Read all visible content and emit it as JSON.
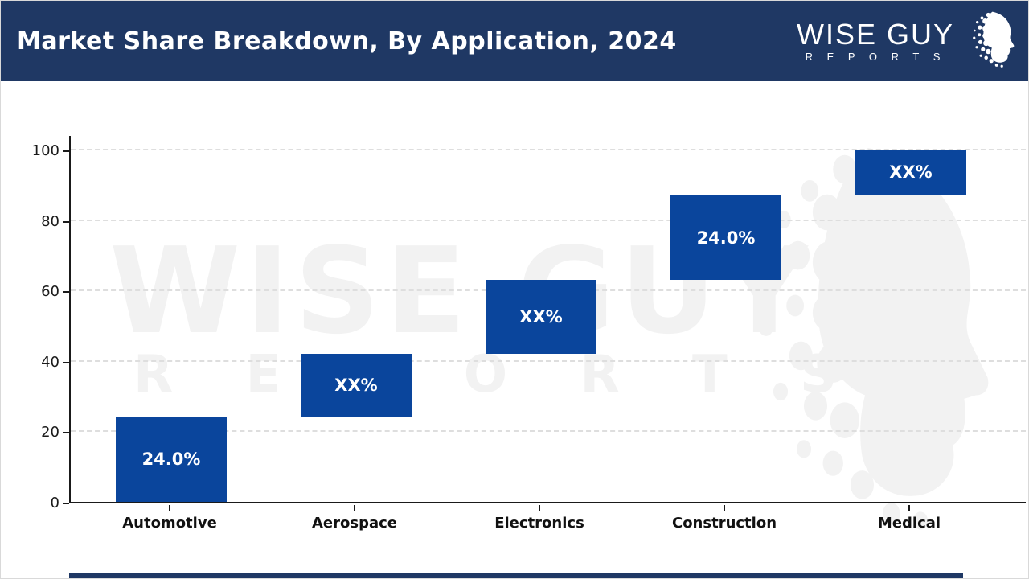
{
  "page": {
    "header": {
      "title": "Market Share Breakdown, By Application, 2024",
      "logo": {
        "line1": "WISE GUY",
        "line2": "R E P O R T S",
        "icon": "wiseguy-face-icon"
      }
    },
    "watermark": {
      "line1": "WISE GUY",
      "line2": "R E P O R T S"
    },
    "colors": {
      "header_bg": "#1f3864",
      "bar": "#0a459c",
      "axis": "#1a1a1a",
      "grid": "#dedede",
      "watermark": "#f2f2f2",
      "footer_bar": "#1f3864"
    }
  },
  "chart_data": {
    "type": "bar",
    "variant": "waterfall",
    "title": "Market Share Breakdown, By Application, 2024",
    "categories": [
      "Automotive",
      "Aerospace",
      "Electronics",
      "Construction",
      "Medical"
    ],
    "segments": [
      {
        "category": "Automotive",
        "start": 0,
        "end": 24,
        "label": "24.0%"
      },
      {
        "category": "Aerospace",
        "start": 24,
        "end": 42,
        "label": "XX%"
      },
      {
        "category": "Electronics",
        "start": 42,
        "end": 63,
        "label": "XX%"
      },
      {
        "category": "Construction",
        "start": 63,
        "end": 87,
        "label": "24.0%"
      },
      {
        "category": "Medical",
        "start": 87,
        "end": 100,
        "label": "XX%"
      }
    ],
    "ylim": [
      0,
      100
    ],
    "yticks": [
      0,
      20,
      40,
      60,
      80,
      100
    ],
    "xlabel": "",
    "ylabel": "",
    "grid": "horizontal-dashed",
    "legend": null
  }
}
